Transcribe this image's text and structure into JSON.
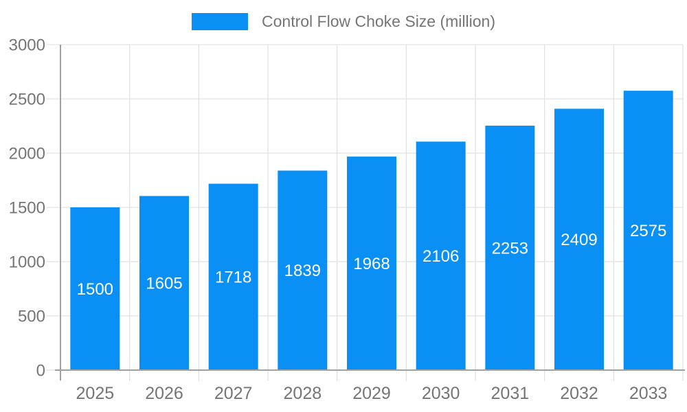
{
  "legend": {
    "label": "Control Flow Choke Size (million)"
  },
  "chart_data": {
    "type": "bar",
    "title": "Control Flow Choke Size (million)",
    "series_name": "Control Flow Choke Size (million)",
    "categories": [
      "2025",
      "2026",
      "2027",
      "2028",
      "2029",
      "2030",
      "2031",
      "2032",
      "2033"
    ],
    "values": [
      1500,
      1605,
      1718,
      1839,
      1968,
      2106,
      2253,
      2409,
      2575
    ],
    "bar_labels": [
      "1500",
      "1605",
      "1718",
      "1839",
      "1968",
      "2106",
      "2253",
      "2409",
      "2575"
    ],
    "ylim": [
      0,
      3000
    ],
    "yticks": [
      0,
      500,
      1000,
      1500,
      2000,
      2500,
      3000
    ],
    "grid": true,
    "legend_position": "top",
    "bar_labels_shown": true,
    "colors": {
      "bar": "#0a90f5",
      "grid": "#e2e2e2",
      "axis": "#a0a0a0",
      "text": "#757575",
      "bar_label": "#ffffff",
      "background": "#ffffff"
    }
  }
}
